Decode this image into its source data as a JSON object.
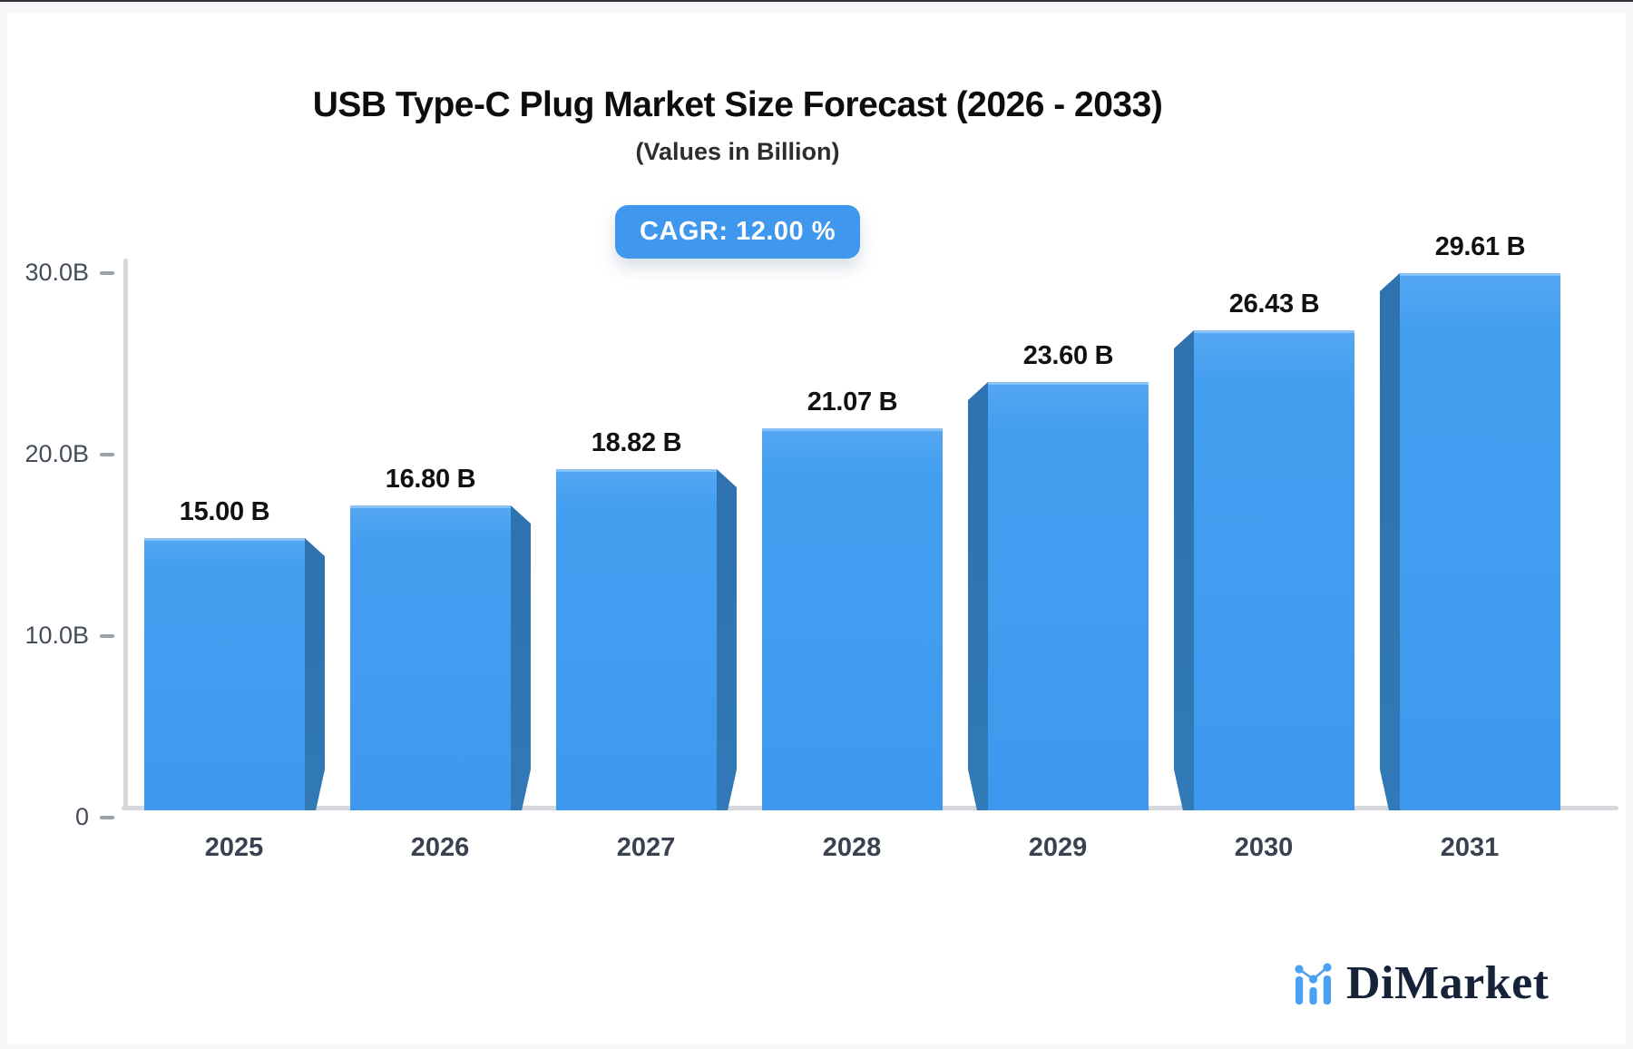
{
  "header": {
    "title": "USB Type-C Plug Market Size Forecast (2026 - 2033)",
    "subtitle": "(Values in Billion)",
    "cagr_badge": "CAGR: 12.00 %"
  },
  "chart_data": {
    "type": "bar",
    "title": "USB Type-C Plug Market Size Forecast (2026 - 2033)",
    "subtitle": "(Values in Billion)",
    "annotation": "CAGR: 12.00 %",
    "categories": [
      "2025",
      "2026",
      "2027",
      "2028",
      "2029",
      "2030",
      "2031"
    ],
    "values": [
      15.0,
      16.8,
      18.82,
      21.07,
      23.6,
      26.43,
      29.61
    ],
    "bar_labels": [
      "15.00 B",
      "16.80 B",
      "18.82 B",
      "21.07 B",
      "23.60 B",
      "26.43 B",
      "29.61 B"
    ],
    "y_ticks": [
      {
        "label": "30.0B",
        "value": 30
      },
      {
        "label": "20.0B",
        "value": 20
      },
      {
        "label": "10.0B",
        "value": 10
      },
      {
        "label": "0",
        "value": 0
      }
    ],
    "ylim": [
      0,
      30
    ],
    "xlabel": "",
    "ylabel": "",
    "grid": false,
    "legend": false
  },
  "branding": {
    "logo_text": "DiMarket",
    "logo_icon": "mini-bar-chart-icon"
  },
  "colors": {
    "frame_bg": "#f6f7f8",
    "top_line": "#2f3236",
    "title_color": "#0c0d0f",
    "subtitle_color": "#2b2d31",
    "badge_bg": "#3f98ed",
    "bar_front_top": "#55a8f2",
    "bar_front_bottom": "#3e98ee",
    "bar_side_top": "#2e72af",
    "bar_side_bottom": "#3179b7",
    "axis_color": "#d5d8dd",
    "tick_dash": "#9aa1ab",
    "ytick_color": "#454d5b",
    "year_color": "#3a4150",
    "value_color": "#101114",
    "logo_navy": "#152238",
    "logo_blue": "#4aa0f2"
  }
}
